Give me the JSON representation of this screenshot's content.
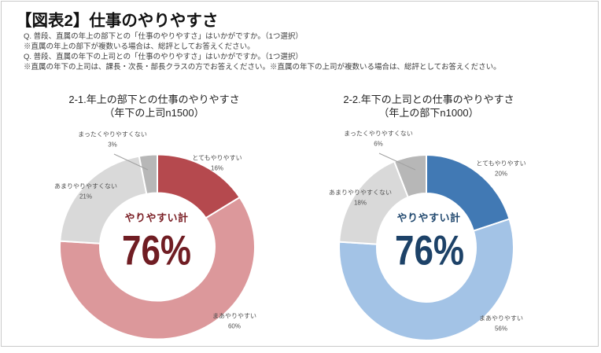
{
  "page_title": "【図表2】仕事のやりやすさ",
  "notes": [
    "Q. 普段、直属の年上の部下との「仕事のやりやすさ」はいかがですか。（1つ選択）",
    "※直属の年上の部下が複数いる場合は、総評としてお答えください。",
    "Q. 普段、直属の年下の上司との「仕事のやりやすさ」はいかがですか。（1つ選択）",
    "※直属の年下の上司は、課長・次長・部長クラスの方でお答えください。※直属の年下の上司が複数いる場合は、総評としてお答えください。"
  ],
  "chart_data": [
    {
      "type": "pie",
      "title": "2-1.年上の部下との仕事のやりやすさ",
      "subtitle": "（年下の上司n1500）",
      "center_label": "やりやすい計",
      "center_value": "76%",
      "center_label_color": "#7c2127",
      "center_value_color": "#701d23",
      "segments": [
        {
          "label": "とてもやりやすい",
          "value": 16,
          "display": "16%",
          "color": "#b5494e"
        },
        {
          "label": "まあやりやすい",
          "value": 60,
          "display": "60%",
          "color": "#dc989b"
        },
        {
          "label": "あまりやりやすくない",
          "value": 21,
          "display": "21%",
          "color": "#d9d9d9"
        },
        {
          "label": "まったくやりやすくない",
          "value": 3,
          "display": "3%",
          "color": "#b7b7b7"
        }
      ]
    },
    {
      "type": "pie",
      "title": "2-2.年下の上司との仕事のやりやすさ",
      "subtitle": "（年上の部下n1000）",
      "center_label": "やりやすい計",
      "center_value": "76%",
      "center_label_color": "#234a70",
      "center_value_color": "#1d4268",
      "segments": [
        {
          "label": "とてもやりやすい",
          "value": 20,
          "display": "20%",
          "color": "#4179b4"
        },
        {
          "label": "まあやりやすい",
          "value": 56,
          "display": "56%",
          "color": "#a3c3e6"
        },
        {
          "label": "あまりやりやすくない",
          "value": 18,
          "display": "18%",
          "color": "#d9d9d9"
        },
        {
          "label": "まったくやりやすくない",
          "value": 6,
          "display": "6%",
          "color": "#b7b7b7"
        }
      ]
    }
  ]
}
